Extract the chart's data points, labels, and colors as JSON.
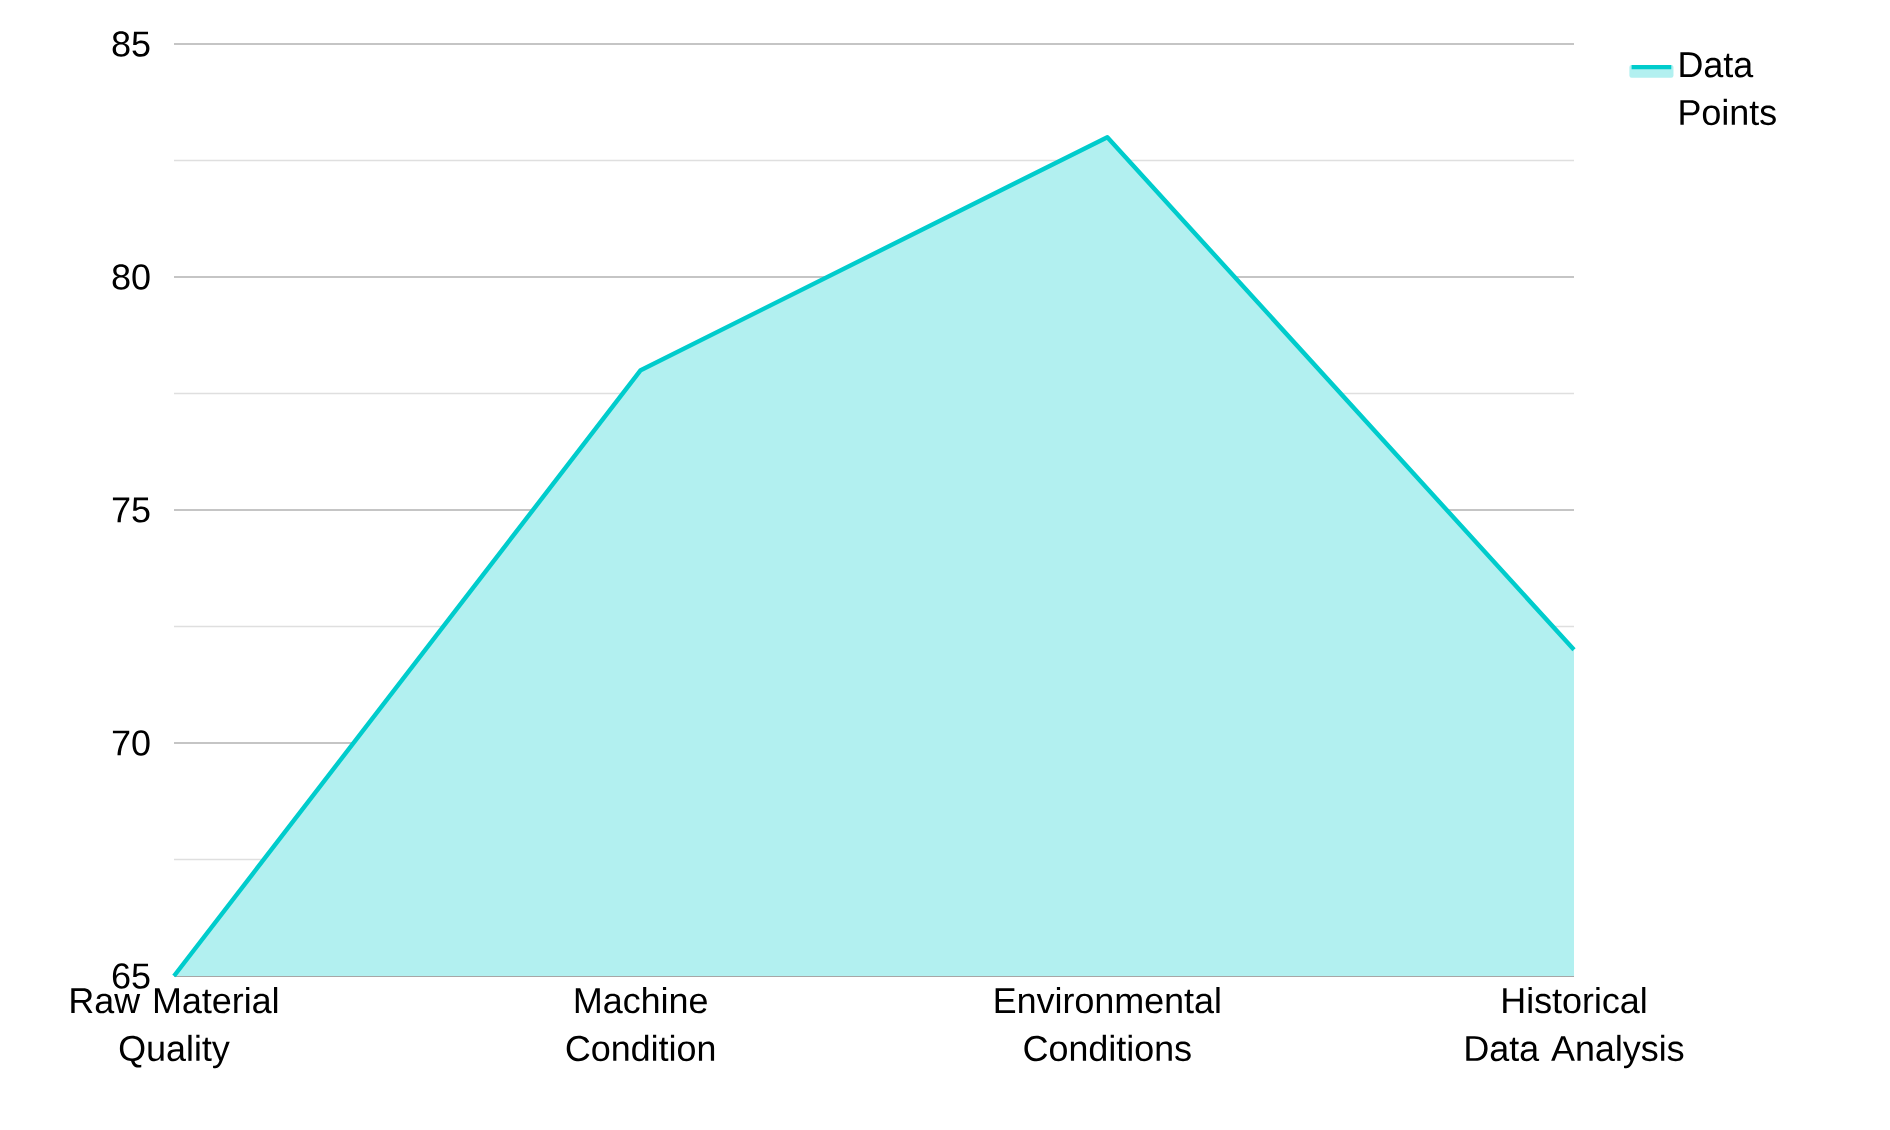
{
  "chart_data": {
    "type": "area",
    "categories": [
      "Raw Material Quality",
      "Machine Condition",
      "Environmental Conditions",
      "Historical Data Analysis"
    ],
    "series": [
      {
        "name": "Data Points",
        "color": "#00cccc",
        "values": [
          65,
          78,
          83,
          72
        ]
      }
    ],
    "ylim": [
      65,
      85
    ],
    "yticks": [
      65,
      70,
      75,
      80,
      85
    ],
    "grid": "y",
    "legend": "top right",
    "marker": "none",
    "line_style": "solid"
  }
}
